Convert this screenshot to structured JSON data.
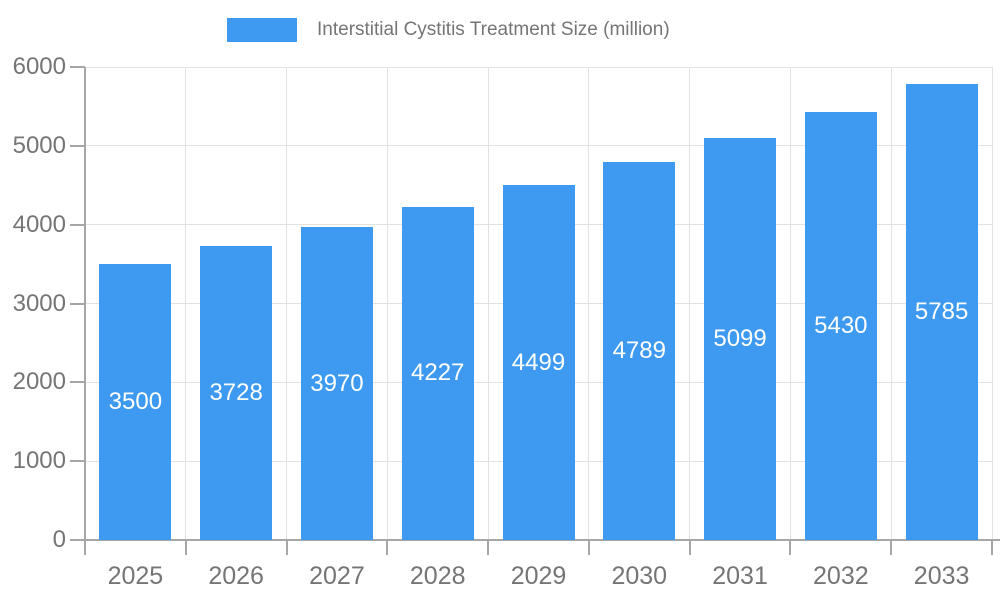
{
  "chart_data": {
    "type": "bar",
    "legend": "Interstitial Cystitis Treatment Size (million)",
    "categories": [
      "2025",
      "2026",
      "2027",
      "2028",
      "2029",
      "2030",
      "2031",
      "2032",
      "2033"
    ],
    "values": [
      3500,
      3728,
      3970,
      4227,
      4499,
      4789,
      5099,
      5430,
      5785
    ],
    "value_labels": [
      "3500",
      "3728",
      "3970",
      "4227",
      "4499",
      "4789",
      "5099",
      "5430",
      "5785"
    ],
    "ytick_labels": [
      "0",
      "1000",
      "2000",
      "3000",
      "4000",
      "5000",
      "6000"
    ],
    "ylim": [
      0,
      6000
    ],
    "ytick_step": 1000,
    "grid": true,
    "legend_position": "top",
    "value_label_position": "inside-center",
    "colors": {
      "bar": "#3d9af0",
      "value_label": "#ffffff",
      "axis_text": "#757575",
      "gridline": "#e2e2e2",
      "axis_line": "#a6a6a6",
      "background": "#ffffff"
    }
  }
}
